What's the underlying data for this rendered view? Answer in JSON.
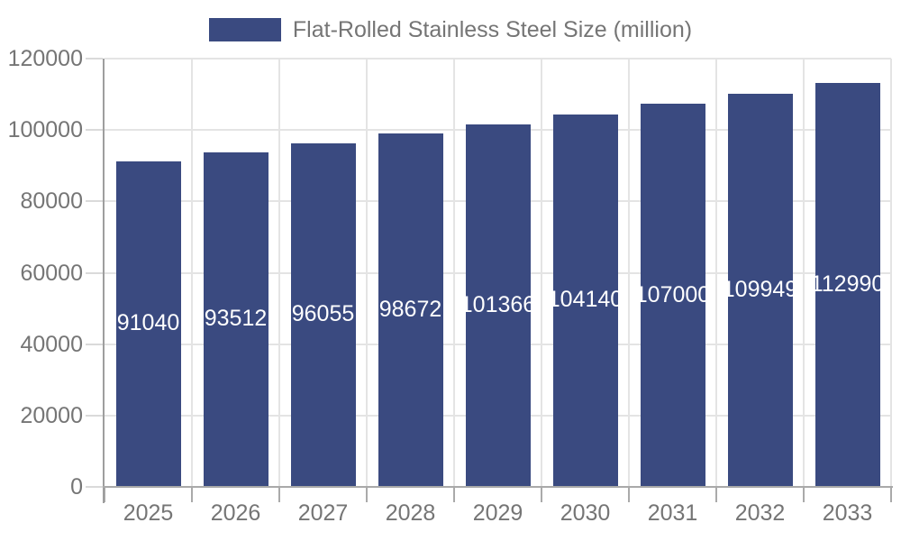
{
  "legend": {
    "label": "Flat-Rolled Stainless Steel Size (million)"
  },
  "chart_data": {
    "type": "bar",
    "title": "Flat-Rolled Stainless Steel Size (million)",
    "series_name": "Flat-Rolled Stainless Steel Size (million)",
    "categories": [
      "2025",
      "2026",
      "2027",
      "2028",
      "2029",
      "2030",
      "2031",
      "2032",
      "2033"
    ],
    "values": [
      91040,
      93512,
      96055,
      98672,
      101366,
      104140,
      107000,
      109949,
      112990
    ],
    "xlabel": "",
    "ylabel": "",
    "ylim": [
      0,
      120000
    ],
    "yticks": [
      0,
      20000,
      40000,
      60000,
      80000,
      100000,
      120000
    ],
    "grid": true,
    "legend_position": "top",
    "bar_color": "#3A4A80",
    "value_label_color": "#ffffff",
    "grid_color": "#e4e4e4",
    "axis_color": "#a9a9a9",
    "tick_label_color": "#757575",
    "background_color": "#ffffff"
  }
}
